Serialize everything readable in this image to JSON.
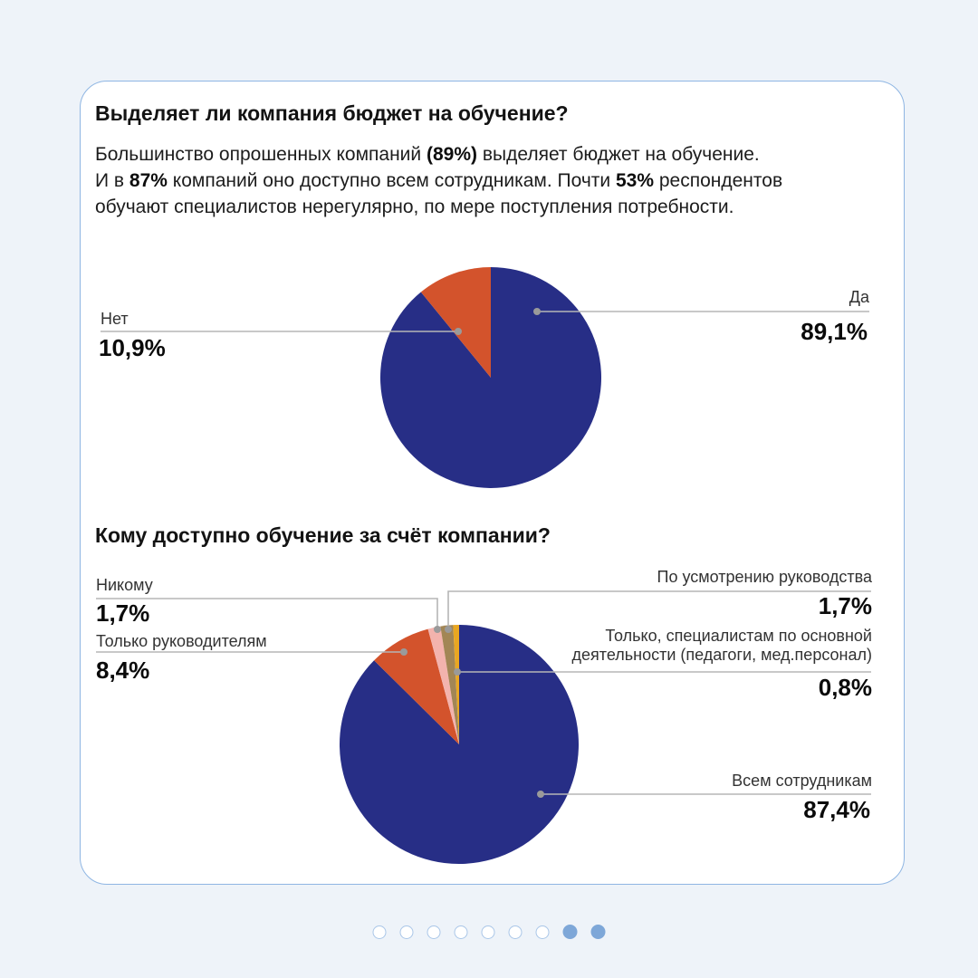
{
  "section1": {
    "title": "Выделяет ли компания бюджет на обучение?",
    "intro": {
      "line1": {
        "s1": "Большинство опрошенных компаний ",
        "b1": "(89%)",
        "s2": " выделяет бюджет на обучение."
      },
      "line2": {
        "s1": "И в ",
        "b1": "87%",
        "s2": " компаний оно доступно всем сотрудникам. Почти ",
        "b2": "53%",
        "s3": " респондентов"
      },
      "line3": {
        "s1": "обучают специалистов нерегулярно, по мере поступления потребности."
      }
    },
    "labels": {
      "no": {
        "name": "Нет",
        "value": "10,9%"
      },
      "yes": {
        "name": "Да",
        "value": "89,1%"
      }
    }
  },
  "section2": {
    "title": "Кому доступно обучение за счёт компании?",
    "labels": {
      "nobody": {
        "name": "Никому",
        "value": "1,7%"
      },
      "management": {
        "name": "По усмотрению руководства",
        "value": "1,7%"
      },
      "managers": {
        "name": "Только руководителям",
        "value": "8,4%"
      },
      "specialists": {
        "name_line1": "Только, специалистам по основной",
        "name_line2": "деятельности (педагоги, мед.персонал)",
        "value": "0,8%"
      },
      "all": {
        "name": "Всем сотрудникам",
        "value": "87,4%"
      }
    }
  },
  "chart_data": [
    {
      "type": "pie",
      "title": "Выделяет ли компания бюджет на обучение?",
      "start_angle": "12 o'clock, clockwise",
      "slices": [
        {
          "label": "Да",
          "value": 89.1,
          "display": "89,1%",
          "color": "#272e86"
        },
        {
          "label": "Нет",
          "value": 10.9,
          "display": "10,9%",
          "color": "#d3532c"
        }
      ]
    },
    {
      "type": "pie",
      "title": "Кому доступно обучение за счёт компании?",
      "start_angle": "12 o'clock, clockwise",
      "slices": [
        {
          "label": "Всем сотрудникам",
          "value": 87.4,
          "display": "87,4%",
          "color": "#272e86"
        },
        {
          "label": "Только руководителям",
          "value": 8.4,
          "display": "8,4%",
          "color": "#d3532c"
        },
        {
          "label": "Никому",
          "value": 1.7,
          "display": "1,7%",
          "color": "#f3b3ad"
        },
        {
          "label": "По усмотрению руководства",
          "value": 1.7,
          "display": "1,7%",
          "color": "#a28655"
        },
        {
          "label": "Только, специалистам по основной деятельности (педагоги, мед.персонал)",
          "value": 0.8,
          "display": "0,8%",
          "color": "#e9a722"
        }
      ]
    }
  ],
  "pagination": {
    "dots": [
      false,
      false,
      false,
      false,
      false,
      false,
      false,
      true,
      true
    ],
    "inactive_border": "#a9c6e8",
    "active_fill": "#7ea7d8"
  },
  "style": {
    "leader_line_color": "#b5b5b5",
    "leader_dot_color": "#9a9a9a",
    "card_border": "#8fb6e3",
    "page_background": "#eef3f9"
  }
}
